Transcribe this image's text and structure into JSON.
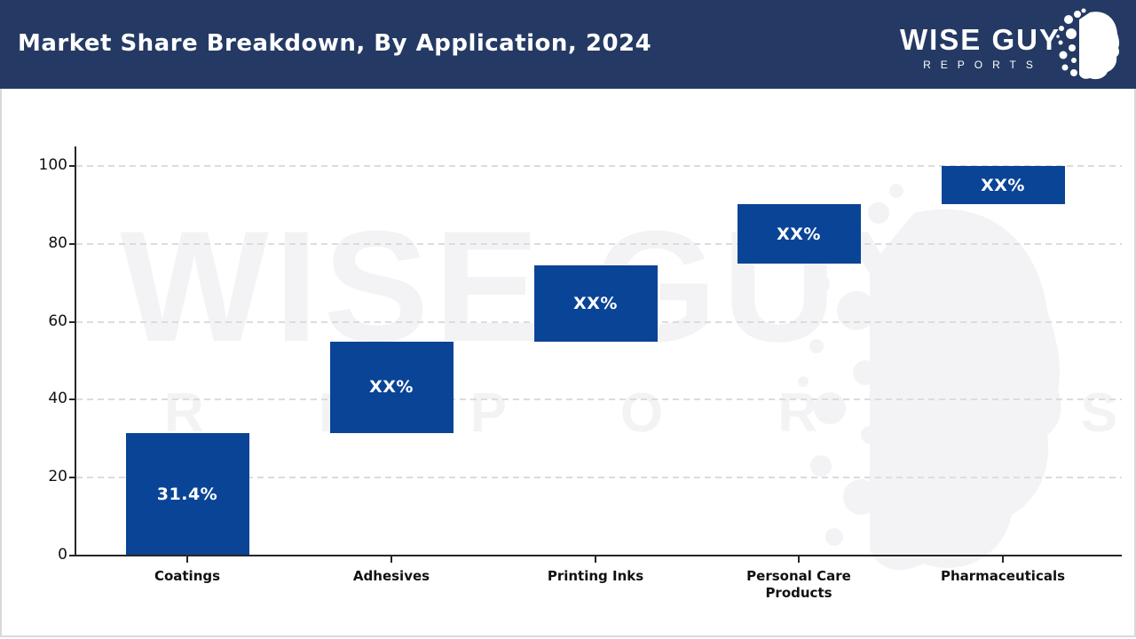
{
  "header": {
    "title": "Market Share Breakdown, By Application, 2024",
    "logo": {
      "line1": "WISE GUY",
      "line2": "REPORTS",
      "icon": "dotted-face-profile"
    }
  },
  "watermark": {
    "line1": "WISE GUY",
    "line2": "R E P O R T S",
    "icon": "dotted-face-profile"
  },
  "chart_data": {
    "type": "bar",
    "subtype": "waterfall",
    "title": "Market Share Breakdown, By Application, 2024",
    "xlabel": "",
    "ylabel": "",
    "ylim": [
      0,
      100
    ],
    "yticks": [
      0,
      20,
      40,
      60,
      80,
      100
    ],
    "grid": true,
    "legend": false,
    "bar_color": "#0a4496",
    "value_label_color": "#ffffff",
    "categories": [
      "Coatings",
      "Adhesives",
      "Printing Inks",
      "Personal Care\nProducts",
      "Pharmaceuticals"
    ],
    "segments": [
      {
        "category": "Coatings",
        "start": 0,
        "end": 31.4,
        "label": "31.4%"
      },
      {
        "category": "Adhesives",
        "start": 31.4,
        "end": 55.0,
        "label": "XX%"
      },
      {
        "category": "Printing Inks",
        "start": 55.0,
        "end": 74.6,
        "label": "XX%"
      },
      {
        "category": "Personal Care Products",
        "start": 74.9,
        "end": 90.1,
        "label": "XX%"
      },
      {
        "category": "Pharmaceuticals",
        "start": 90.2,
        "end": 100.0,
        "label": "XX%"
      }
    ]
  }
}
